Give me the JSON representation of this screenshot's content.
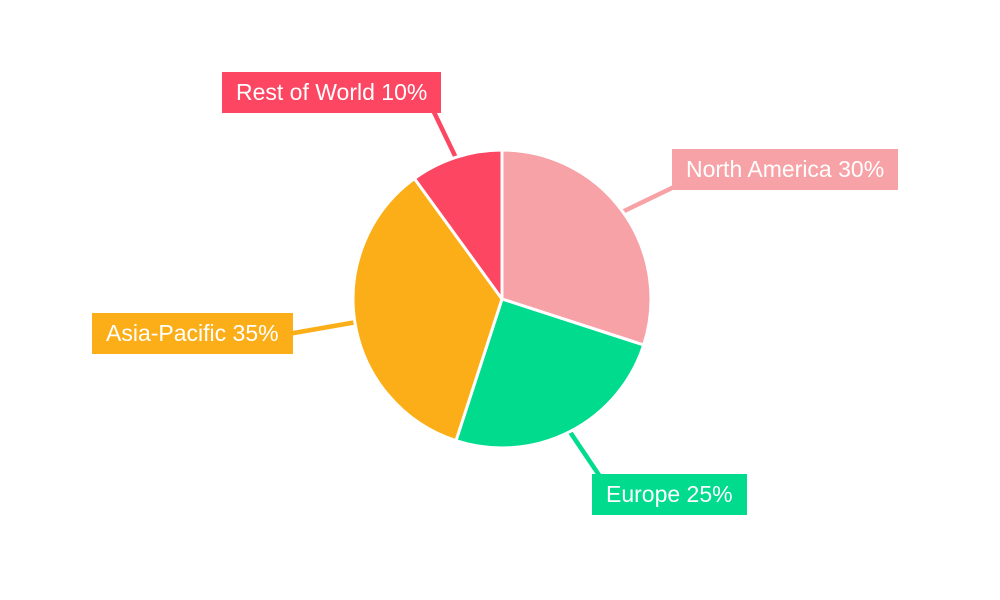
{
  "chart_data": {
    "type": "pie",
    "title": "",
    "background": "#FFFFFF",
    "direction": "clockwise",
    "start_angle_deg": 0,
    "legend_position": "callout-labels",
    "gap_color": "#FFFFFF",
    "categories": [
      "North America",
      "Europe",
      "Asia-Pacific",
      "Rest of World"
    ],
    "values": [
      30,
      25,
      35,
      10
    ],
    "slices": [
      {
        "id": "north-america",
        "label": "North America",
        "value": 30,
        "pct": "30%",
        "callout": "North America 30%",
        "color": "#F7A2A6"
      },
      {
        "id": "europe",
        "label": "Europe",
        "value": 25,
        "pct": "25%",
        "callout": "Europe 25%",
        "color": "#00DB8E"
      },
      {
        "id": "asia-pacific",
        "label": "Asia-Pacific",
        "value": 35,
        "pct": "35%",
        "callout": "Asia-Pacific 35%",
        "color": "#FBAE17"
      },
      {
        "id": "rest-of-world",
        "label": "Rest of World",
        "value": 10,
        "pct": "10%",
        "callout": "Rest of World 10%",
        "color": "#FC4662"
      }
    ]
  }
}
